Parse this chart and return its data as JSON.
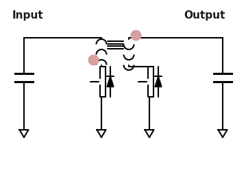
{
  "title_input": "Input",
  "title_output": "Output",
  "bg_color": "#ffffff",
  "line_color": "#000000",
  "dot_color": "#d4a0a0",
  "title_color": "#1a1a1a",
  "font_size_label": 11
}
